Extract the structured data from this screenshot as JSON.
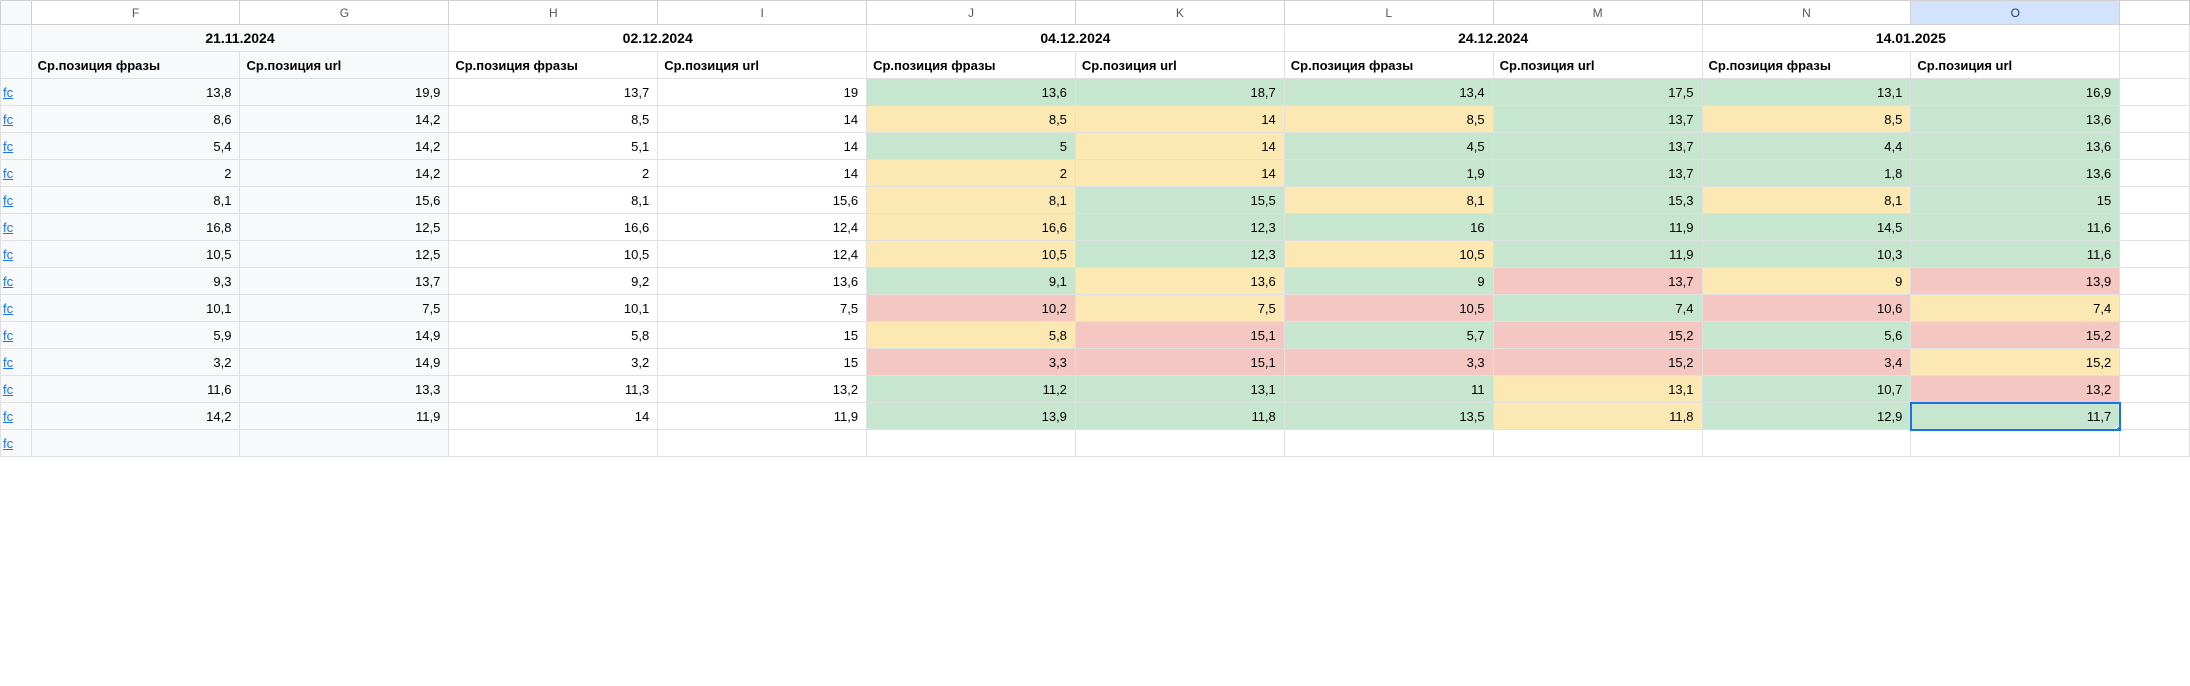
{
  "columns": [
    "F",
    "G",
    "H",
    "I",
    "J",
    "K",
    "L",
    "M",
    "N",
    "O"
  ],
  "selected_column": "O",
  "dates": [
    "21.11.2024",
    "02.12.2024",
    "04.12.2024",
    "24.12.2024",
    "14.01.2025"
  ],
  "subheaders": {
    "phrase": "Ср.позиция фразы",
    "url": "Ср.позиция url"
  },
  "row_stub": "fc",
  "colors": {
    "green": "#c7e6cf",
    "yellow": "#fce8b2",
    "red": "#f4c7c3",
    "white": "#ffffff",
    "grey": "#f8f9fa",
    "border": "#e0e0e0",
    "select_blue": "#1a73e8",
    "col_sel_bg": "#d3e3fd"
  },
  "selected_cell": {
    "row": 12,
    "col": 9
  },
  "rows": [
    [
      {
        "v": "13,8",
        "c": "shade-f"
      },
      {
        "v": "19,9",
        "c": "shade-f"
      },
      {
        "v": "13,7",
        "c": "w"
      },
      {
        "v": "19",
        "c": "w"
      },
      {
        "v": "13,6",
        "c": "g"
      },
      {
        "v": "18,7",
        "c": "g"
      },
      {
        "v": "13,4",
        "c": "g"
      },
      {
        "v": "17,5",
        "c": "g"
      },
      {
        "v": "13,1",
        "c": "g"
      },
      {
        "v": "16,9",
        "c": "g"
      }
    ],
    [
      {
        "v": "8,6",
        "c": "shade-f"
      },
      {
        "v": "14,2",
        "c": "shade-f"
      },
      {
        "v": "8,5",
        "c": "w"
      },
      {
        "v": "14",
        "c": "w"
      },
      {
        "v": "8,5",
        "c": "y"
      },
      {
        "v": "14",
        "c": "y"
      },
      {
        "v": "8,5",
        "c": "y"
      },
      {
        "v": "13,7",
        "c": "g"
      },
      {
        "v": "8,5",
        "c": "y"
      },
      {
        "v": "13,6",
        "c": "g"
      }
    ],
    [
      {
        "v": "5,4",
        "c": "shade-f"
      },
      {
        "v": "14,2",
        "c": "shade-f"
      },
      {
        "v": "5,1",
        "c": "w"
      },
      {
        "v": "14",
        "c": "w"
      },
      {
        "v": "5",
        "c": "g"
      },
      {
        "v": "14",
        "c": "y"
      },
      {
        "v": "4,5",
        "c": "g"
      },
      {
        "v": "13,7",
        "c": "g"
      },
      {
        "v": "4,4",
        "c": "g"
      },
      {
        "v": "13,6",
        "c": "g"
      }
    ],
    [
      {
        "v": "2",
        "c": "shade-f"
      },
      {
        "v": "14,2",
        "c": "shade-f"
      },
      {
        "v": "2",
        "c": "w"
      },
      {
        "v": "14",
        "c": "w"
      },
      {
        "v": "2",
        "c": "y"
      },
      {
        "v": "14",
        "c": "y"
      },
      {
        "v": "1,9",
        "c": "g"
      },
      {
        "v": "13,7",
        "c": "g"
      },
      {
        "v": "1,8",
        "c": "g"
      },
      {
        "v": "13,6",
        "c": "g"
      }
    ],
    [
      {
        "v": "8,1",
        "c": "shade-f"
      },
      {
        "v": "15,6",
        "c": "shade-f"
      },
      {
        "v": "8,1",
        "c": "w"
      },
      {
        "v": "15,6",
        "c": "w"
      },
      {
        "v": "8,1",
        "c": "y"
      },
      {
        "v": "15,5",
        "c": "g"
      },
      {
        "v": "8,1",
        "c": "y"
      },
      {
        "v": "15,3",
        "c": "g"
      },
      {
        "v": "8,1",
        "c": "y"
      },
      {
        "v": "15",
        "c": "g"
      }
    ],
    [
      {
        "v": "16,8",
        "c": "shade-f"
      },
      {
        "v": "12,5",
        "c": "shade-f"
      },
      {
        "v": "16,6",
        "c": "w"
      },
      {
        "v": "12,4",
        "c": "w"
      },
      {
        "v": "16,6",
        "c": "y"
      },
      {
        "v": "12,3",
        "c": "g"
      },
      {
        "v": "16",
        "c": "g"
      },
      {
        "v": "11,9",
        "c": "g"
      },
      {
        "v": "14,5",
        "c": "g"
      },
      {
        "v": "11,6",
        "c": "g"
      }
    ],
    [
      {
        "v": "10,5",
        "c": "shade-f"
      },
      {
        "v": "12,5",
        "c": "shade-f"
      },
      {
        "v": "10,5",
        "c": "w"
      },
      {
        "v": "12,4",
        "c": "w"
      },
      {
        "v": "10,5",
        "c": "y"
      },
      {
        "v": "12,3",
        "c": "g"
      },
      {
        "v": "10,5",
        "c": "y"
      },
      {
        "v": "11,9",
        "c": "g"
      },
      {
        "v": "10,3",
        "c": "g"
      },
      {
        "v": "11,6",
        "c": "g"
      }
    ],
    [
      {
        "v": "9,3",
        "c": "shade-f"
      },
      {
        "v": "13,7",
        "c": "shade-f"
      },
      {
        "v": "9,2",
        "c": "w"
      },
      {
        "v": "13,6",
        "c": "w"
      },
      {
        "v": "9,1",
        "c": "g"
      },
      {
        "v": "13,6",
        "c": "y"
      },
      {
        "v": "9",
        "c": "g"
      },
      {
        "v": "13,7",
        "c": "r"
      },
      {
        "v": "9",
        "c": "y"
      },
      {
        "v": "13,9",
        "c": "r"
      }
    ],
    [
      {
        "v": "10,1",
        "c": "shade-f"
      },
      {
        "v": "7,5",
        "c": "shade-f"
      },
      {
        "v": "10,1",
        "c": "w"
      },
      {
        "v": "7,5",
        "c": "w"
      },
      {
        "v": "10,2",
        "c": "r"
      },
      {
        "v": "7,5",
        "c": "y"
      },
      {
        "v": "10,5",
        "c": "r"
      },
      {
        "v": "7,4",
        "c": "g"
      },
      {
        "v": "10,6",
        "c": "r"
      },
      {
        "v": "7,4",
        "c": "y"
      }
    ],
    [
      {
        "v": "5,9",
        "c": "shade-f"
      },
      {
        "v": "14,9",
        "c": "shade-f"
      },
      {
        "v": "5,8",
        "c": "w"
      },
      {
        "v": "15",
        "c": "w"
      },
      {
        "v": "5,8",
        "c": "y"
      },
      {
        "v": "15,1",
        "c": "r"
      },
      {
        "v": "5,7",
        "c": "g"
      },
      {
        "v": "15,2",
        "c": "r"
      },
      {
        "v": "5,6",
        "c": "g"
      },
      {
        "v": "15,2",
        "c": "r"
      }
    ],
    [
      {
        "v": "3,2",
        "c": "shade-f"
      },
      {
        "v": "14,9",
        "c": "shade-f"
      },
      {
        "v": "3,2",
        "c": "w"
      },
      {
        "v": "15",
        "c": "w"
      },
      {
        "v": "3,3",
        "c": "r"
      },
      {
        "v": "15,1",
        "c": "r"
      },
      {
        "v": "3,3",
        "c": "r"
      },
      {
        "v": "15,2",
        "c": "r"
      },
      {
        "v": "3,4",
        "c": "r"
      },
      {
        "v": "15,2",
        "c": "y"
      }
    ],
    [
      {
        "v": "11,6",
        "c": "shade-f"
      },
      {
        "v": "13,3",
        "c": "shade-f"
      },
      {
        "v": "11,3",
        "c": "w"
      },
      {
        "v": "13,2",
        "c": "w"
      },
      {
        "v": "11,2",
        "c": "g"
      },
      {
        "v": "13,1",
        "c": "g"
      },
      {
        "v": "11",
        "c": "g"
      },
      {
        "v": "13,1",
        "c": "y"
      },
      {
        "v": "10,7",
        "c": "g"
      },
      {
        "v": "13,2",
        "c": "r"
      }
    ],
    [
      {
        "v": "14,2",
        "c": "shade-f"
      },
      {
        "v": "11,9",
        "c": "shade-f"
      },
      {
        "v": "14",
        "c": "w"
      },
      {
        "v": "11,9",
        "c": "w"
      },
      {
        "v": "13,9",
        "c": "g"
      },
      {
        "v": "11,8",
        "c": "g"
      },
      {
        "v": "13,5",
        "c": "g"
      },
      {
        "v": "11,8",
        "c": "y"
      },
      {
        "v": "12,9",
        "c": "g"
      },
      {
        "v": "11,7",
        "c": "g"
      }
    ]
  ]
}
